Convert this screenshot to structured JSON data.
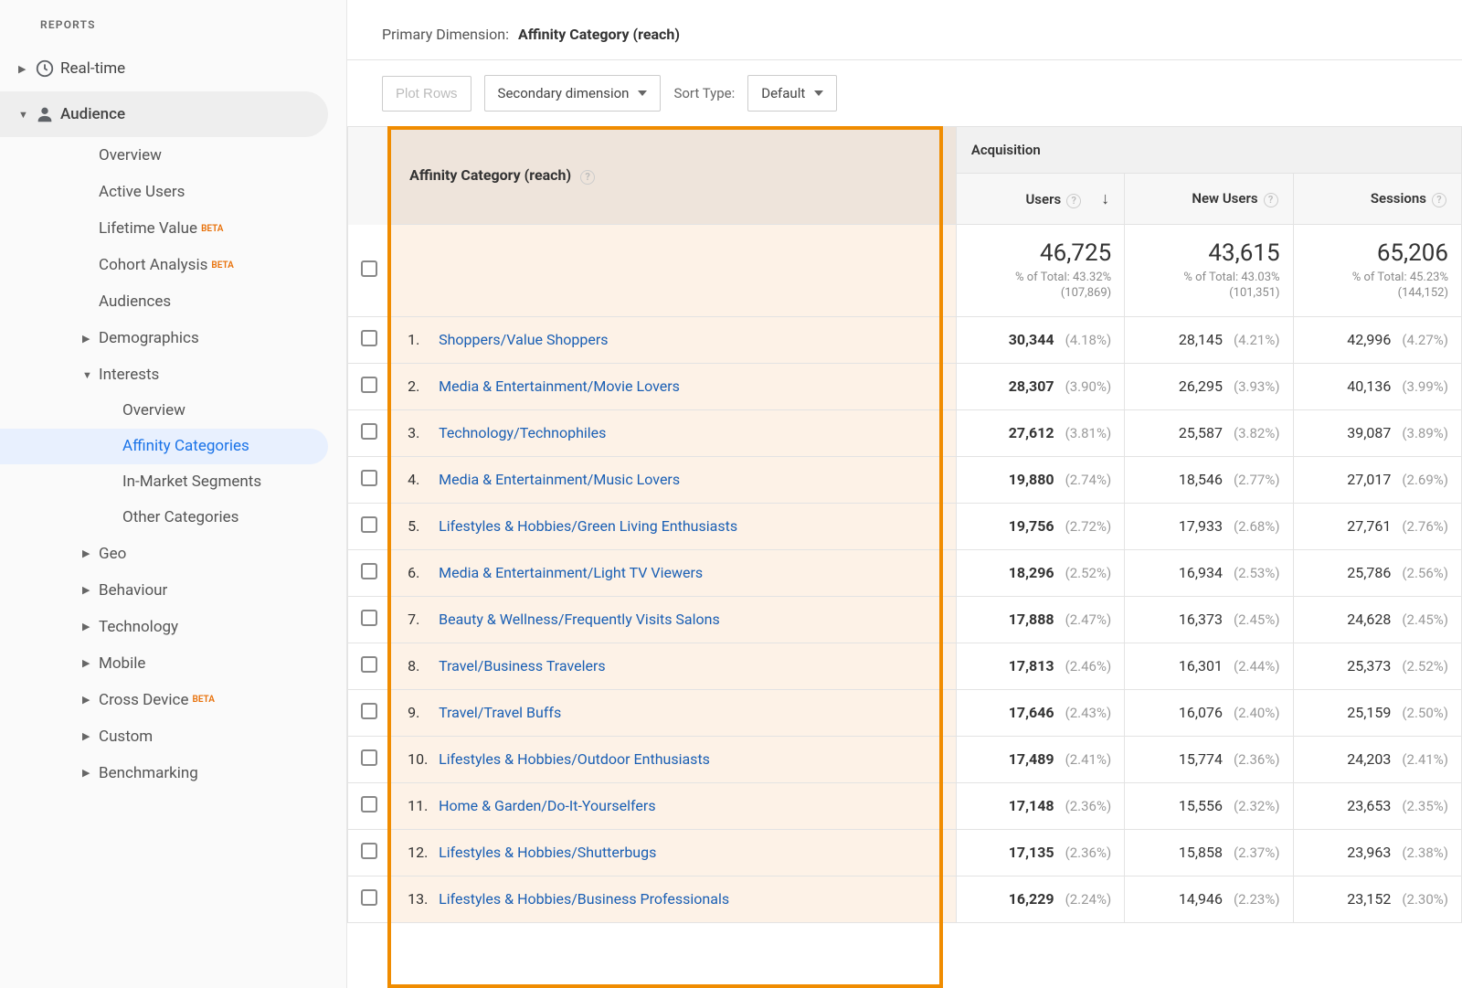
{
  "sidebar": {
    "header": "REPORTS",
    "items": [
      {
        "label": "Real-time",
        "icon": "clock",
        "expandable": true
      },
      {
        "label": "Audience",
        "icon": "person",
        "expandable": true,
        "expanded": true,
        "selected": true
      }
    ],
    "audience_subs": [
      {
        "label": "Overview"
      },
      {
        "label": "Active Users"
      },
      {
        "label": "Lifetime Value",
        "beta": true
      },
      {
        "label": "Cohort Analysis",
        "beta": true
      },
      {
        "label": "Audiences"
      },
      {
        "label": "Demographics",
        "caret": true
      },
      {
        "label": "Interests",
        "caret": true,
        "expanded": true
      }
    ],
    "interests_subs": [
      {
        "label": "Overview"
      },
      {
        "label": "Affinity Categories",
        "active": true
      },
      {
        "label": "In-Market Segments"
      },
      {
        "label": "Other Categories"
      }
    ],
    "audience_subs_after": [
      {
        "label": "Geo",
        "caret": true
      },
      {
        "label": "Behaviour",
        "caret": true
      },
      {
        "label": "Technology",
        "caret": true
      },
      {
        "label": "Mobile",
        "caret": true
      },
      {
        "label": "Cross Device",
        "caret": true,
        "beta": true
      },
      {
        "label": "Custom",
        "caret": true
      },
      {
        "label": "Benchmarking",
        "caret": true
      }
    ],
    "beta": "BETA"
  },
  "header": {
    "primary_dim_label": "Primary Dimension:",
    "primary_dim_value": "Affinity Category (reach)",
    "plot_rows": "Plot Rows",
    "secondary_dim": "Secondary dimension",
    "sort_type_label": "Sort Type:",
    "sort_type_value": "Default"
  },
  "table": {
    "cat_header": "Affinity Category (reach)",
    "acquisition_label": "Acquisition",
    "columns": [
      {
        "label": "Users",
        "sort": true
      },
      {
        "label": "New Users"
      },
      {
        "label": "Sessions"
      }
    ],
    "totals": [
      {
        "value": "46,725",
        "pct": "43.32%",
        "total": "(107,869)"
      },
      {
        "value": "43,615",
        "pct": "43.03%",
        "total": "(101,351)"
      },
      {
        "value": "65,206",
        "pct": "45.23%",
        "total": "(144,152)"
      }
    ],
    "total_prefix": "% of Total: ",
    "rows": [
      {
        "n": "1.",
        "name": "Shoppers/Value Shoppers",
        "m": [
          [
            "30,344",
            "(4.18%)"
          ],
          [
            "28,145",
            "(4.21%)"
          ],
          [
            "42,996",
            "(4.27%)"
          ]
        ]
      },
      {
        "n": "2.",
        "name": "Media & Entertainment/Movie Lovers",
        "m": [
          [
            "28,307",
            "(3.90%)"
          ],
          [
            "26,295",
            "(3.93%)"
          ],
          [
            "40,136",
            "(3.99%)"
          ]
        ]
      },
      {
        "n": "3.",
        "name": "Technology/Technophiles",
        "m": [
          [
            "27,612",
            "(3.81%)"
          ],
          [
            "25,587",
            "(3.82%)"
          ],
          [
            "39,087",
            "(3.89%)"
          ]
        ]
      },
      {
        "n": "4.",
        "name": "Media & Entertainment/Music Lovers",
        "m": [
          [
            "19,880",
            "(2.74%)"
          ],
          [
            "18,546",
            "(2.77%)"
          ],
          [
            "27,017",
            "(2.69%)"
          ]
        ]
      },
      {
        "n": "5.",
        "name": "Lifestyles & Hobbies/Green Living Enthusiasts",
        "m": [
          [
            "19,756",
            "(2.72%)"
          ],
          [
            "17,933",
            "(2.68%)"
          ],
          [
            "27,761",
            "(2.76%)"
          ]
        ]
      },
      {
        "n": "6.",
        "name": "Media & Entertainment/Light TV Viewers",
        "m": [
          [
            "18,296",
            "(2.52%)"
          ],
          [
            "16,934",
            "(2.53%)"
          ],
          [
            "25,786",
            "(2.56%)"
          ]
        ]
      },
      {
        "n": "7.",
        "name": "Beauty & Wellness/Frequently Visits Salons",
        "m": [
          [
            "17,888",
            "(2.47%)"
          ],
          [
            "16,373",
            "(2.45%)"
          ],
          [
            "24,628",
            "(2.45%)"
          ]
        ]
      },
      {
        "n": "8.",
        "name": "Travel/Business Travelers",
        "m": [
          [
            "17,813",
            "(2.46%)"
          ],
          [
            "16,301",
            "(2.44%)"
          ],
          [
            "25,373",
            "(2.52%)"
          ]
        ]
      },
      {
        "n": "9.",
        "name": "Travel/Travel Buffs",
        "m": [
          [
            "17,646",
            "(2.43%)"
          ],
          [
            "16,076",
            "(2.40%)"
          ],
          [
            "25,159",
            "(2.50%)"
          ]
        ]
      },
      {
        "n": "10.",
        "name": "Lifestyles & Hobbies/Outdoor Enthusiasts",
        "m": [
          [
            "17,489",
            "(2.41%)"
          ],
          [
            "15,774",
            "(2.36%)"
          ],
          [
            "24,203",
            "(2.41%)"
          ]
        ]
      },
      {
        "n": "11.",
        "name": "Home & Garden/Do-It-Yourselfers",
        "m": [
          [
            "17,148",
            "(2.36%)"
          ],
          [
            "15,556",
            "(2.32%)"
          ],
          [
            "23,653",
            "(2.35%)"
          ]
        ]
      },
      {
        "n": "12.",
        "name": "Lifestyles & Hobbies/Shutterbugs",
        "m": [
          [
            "17,135",
            "(2.36%)"
          ],
          [
            "15,858",
            "(2.37%)"
          ],
          [
            "23,963",
            "(2.38%)"
          ]
        ]
      },
      {
        "n": "13.",
        "name": "Lifestyles & Hobbies/Business Professionals",
        "m": [
          [
            "16,229",
            "(2.24%)"
          ],
          [
            "14,946",
            "(2.23%)"
          ],
          [
            "23,152",
            "(2.30%)"
          ]
        ]
      }
    ]
  },
  "styling": {
    "highlight_border_color": "#f08c00",
    "highlight_bg_color": "#fdf2e7",
    "link_color": "#1a5fb4",
    "active_nav_color": "#1a73e8",
    "beta_color": "#e8710a"
  }
}
